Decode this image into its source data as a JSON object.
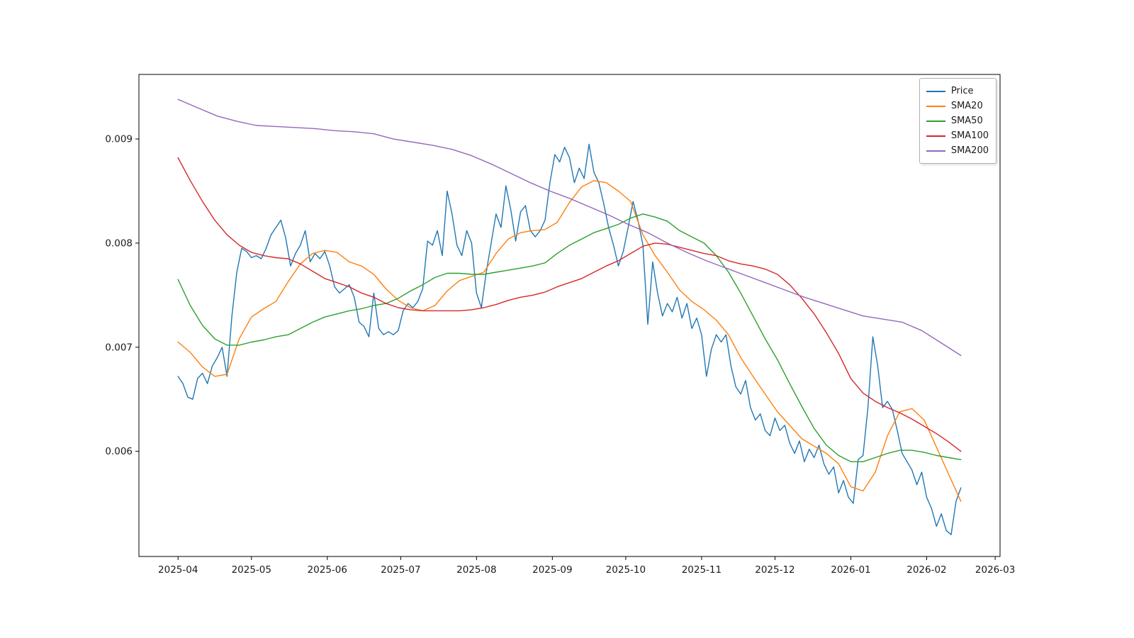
{
  "figure": {
    "background": "#ffffff"
  },
  "chart_data": {
    "type": "line",
    "title": "",
    "xlabel": "",
    "ylabel": "",
    "grid": false,
    "legend_position": "upper right",
    "x_unit": "days since 2025-04-01",
    "xlim": [
      -16,
      336
    ],
    "ylim": [
      0.00499,
      0.00962
    ],
    "yticks": [
      0.006,
      0.007,
      0.008,
      0.009
    ],
    "x_ticks": [
      {
        "day": 0,
        "label": "2025-04"
      },
      {
        "day": 30,
        "label": "2025-05"
      },
      {
        "day": 61,
        "label": "2025-06"
      },
      {
        "day": 91,
        "label": "2025-07"
      },
      {
        "day": 122,
        "label": "2025-08"
      },
      {
        "day": 153,
        "label": "2025-09"
      },
      {
        "day": 183,
        "label": "2025-10"
      },
      {
        "day": 214,
        "label": "2025-11"
      },
      {
        "day": 244,
        "label": "2025-12"
      },
      {
        "day": 275,
        "label": "2026-01"
      },
      {
        "day": 306,
        "label": "2026-02"
      },
      {
        "day": 334,
        "label": "2026-03"
      }
    ],
    "series": [
      {
        "name": "Price",
        "color": "#1f77b4",
        "start_day": 0,
        "step": 2,
        "values": [
          0.00672,
          0.00665,
          0.00652,
          0.0065,
          0.0067,
          0.00675,
          0.00665,
          0.00682,
          0.0069,
          0.007,
          0.00672,
          0.0073,
          0.00772,
          0.00795,
          0.00792,
          0.00786,
          0.00788,
          0.00785,
          0.00795,
          0.00808,
          0.00815,
          0.00822,
          0.00805,
          0.00778,
          0.0079,
          0.00798,
          0.00812,
          0.00782,
          0.0079,
          0.00785,
          0.00792,
          0.00778,
          0.00758,
          0.00752,
          0.00756,
          0.0076,
          0.00748,
          0.00724,
          0.0072,
          0.0071,
          0.00752,
          0.00718,
          0.00712,
          0.00715,
          0.00712,
          0.00716,
          0.00735,
          0.00742,
          0.00738,
          0.00744,
          0.00756,
          0.00802,
          0.00798,
          0.00812,
          0.00788,
          0.0085,
          0.00828,
          0.00798,
          0.00788,
          0.00812,
          0.008,
          0.00752,
          0.00738,
          0.00772,
          0.008,
          0.00828,
          0.00815,
          0.00855,
          0.00832,
          0.00802,
          0.0083,
          0.00836,
          0.00812,
          0.00806,
          0.00812,
          0.00822,
          0.00858,
          0.00885,
          0.00878,
          0.00892,
          0.00882,
          0.00858,
          0.00872,
          0.00862,
          0.00895,
          0.00868,
          0.00858,
          0.00838,
          0.00815,
          0.00798,
          0.00778,
          0.00792,
          0.00815,
          0.0084,
          0.00822,
          0.00798,
          0.00722,
          0.00782,
          0.00752,
          0.0073,
          0.00742,
          0.00734,
          0.00748,
          0.00728,
          0.00742,
          0.00718,
          0.00728,
          0.00712,
          0.00672,
          0.00698,
          0.00712,
          0.00705,
          0.00712,
          0.00682,
          0.00662,
          0.00655,
          0.00668,
          0.00642,
          0.0063,
          0.00636,
          0.0062,
          0.00615,
          0.00632,
          0.0062,
          0.00625,
          0.00608,
          0.00598,
          0.0061,
          0.0059,
          0.00602,
          0.00594,
          0.00606,
          0.00588,
          0.00578,
          0.00585,
          0.0056,
          0.00572,
          0.00556,
          0.0055,
          0.00592,
          0.00596,
          0.00642,
          0.0071,
          0.00682,
          0.00642,
          0.00648,
          0.0064,
          0.0062,
          0.00598,
          0.0059,
          0.00582,
          0.00568,
          0.0058,
          0.00556,
          0.00545,
          0.00528,
          0.0054,
          0.00524,
          0.0052,
          0.00552,
          0.00565
        ]
      },
      {
        "name": "SMA20",
        "color": "#ff7f0e",
        "start_day": 0,
        "step": 5,
        "values": [
          0.00705,
          0.00695,
          0.00681,
          0.00672,
          0.00674,
          0.00708,
          0.00729,
          0.00737,
          0.00744,
          0.00763,
          0.0078,
          0.0079,
          0.00793,
          0.00791,
          0.00782,
          0.00778,
          0.0077,
          0.00756,
          0.00745,
          0.00738,
          0.00735,
          0.0074,
          0.00754,
          0.00764,
          0.00768,
          0.00772,
          0.0079,
          0.00804,
          0.0081,
          0.00812,
          0.00813,
          0.0082,
          0.00839,
          0.00854,
          0.0086,
          0.00858,
          0.0085,
          0.0084,
          0.00808,
          0.00788,
          0.00772,
          0.00755,
          0.00744,
          0.00736,
          0.00726,
          0.00712,
          0.0069,
          0.00672,
          0.00655,
          0.00638,
          0.00625,
          0.00612,
          0.00605,
          0.00598,
          0.00588,
          0.00566,
          0.00562,
          0.0058,
          0.00615,
          0.00638,
          0.00641,
          0.0063,
          0.00604,
          0.00578,
          0.00552
        ]
      },
      {
        "name": "SMA50",
        "color": "#2ca02c",
        "start_day": 0,
        "step": 5,
        "values": [
          0.00765,
          0.0074,
          0.00721,
          0.00708,
          0.00702,
          0.00702,
          0.00705,
          0.00707,
          0.0071,
          0.00712,
          0.00718,
          0.00724,
          0.00729,
          0.00732,
          0.00735,
          0.00737,
          0.0074,
          0.00742,
          0.00747,
          0.00754,
          0.0076,
          0.00767,
          0.00771,
          0.00771,
          0.0077,
          0.0077,
          0.00772,
          0.00774,
          0.00776,
          0.00778,
          0.00781,
          0.0079,
          0.00798,
          0.00804,
          0.0081,
          0.00814,
          0.00818,
          0.00824,
          0.00828,
          0.00825,
          0.00821,
          0.00812,
          0.00806,
          0.008,
          0.00788,
          0.00772,
          0.00752,
          0.0073,
          0.00708,
          0.00688,
          0.00665,
          0.00643,
          0.00622,
          0.00606,
          0.00596,
          0.0059,
          0.0059,
          0.00594,
          0.00598,
          0.00601,
          0.00601,
          0.00599,
          0.00596,
          0.00594,
          0.00592
        ]
      },
      {
        "name": "SMA100",
        "color": "#d62728",
        "start_day": 0,
        "step": 5,
        "values": [
          0.00882,
          0.0086,
          0.0084,
          0.00822,
          0.00808,
          0.00798,
          0.00791,
          0.00788,
          0.00786,
          0.00785,
          0.0078,
          0.00773,
          0.00766,
          0.00762,
          0.00758,
          0.00752,
          0.00748,
          0.00742,
          0.00738,
          0.00736,
          0.00735,
          0.00735,
          0.00735,
          0.00735,
          0.00736,
          0.00738,
          0.00741,
          0.00745,
          0.00748,
          0.0075,
          0.00753,
          0.00758,
          0.00762,
          0.00766,
          0.00772,
          0.00778,
          0.00783,
          0.0079,
          0.00797,
          0.008,
          0.00799,
          0.00796,
          0.00793,
          0.0079,
          0.00788,
          0.00783,
          0.0078,
          0.00778,
          0.00775,
          0.0077,
          0.0076,
          0.00747,
          0.00732,
          0.00714,
          0.00694,
          0.0067,
          0.00656,
          0.00648,
          0.00642,
          0.00637,
          0.00631,
          0.00624,
          0.00617,
          0.00609,
          0.006
        ]
      },
      {
        "name": "SMA200",
        "color": "#9467bd",
        "start_day": 0,
        "step": 8,
        "values": [
          0.00938,
          0.0093,
          0.00922,
          0.00917,
          0.00913,
          0.00912,
          0.00911,
          0.0091,
          0.00908,
          0.00907,
          0.00905,
          0.009,
          0.00897,
          0.00894,
          0.0089,
          0.00884,
          0.00876,
          0.00867,
          0.00858,
          0.0085,
          0.00843,
          0.00835,
          0.00827,
          0.00818,
          0.0081,
          0.008,
          0.00791,
          0.00783,
          0.00776,
          0.00769,
          0.00762,
          0.00755,
          0.00748,
          0.00742,
          0.00736,
          0.0073,
          0.00727,
          0.00724,
          0.00716,
          0.00704,
          0.00692
        ]
      }
    ]
  }
}
